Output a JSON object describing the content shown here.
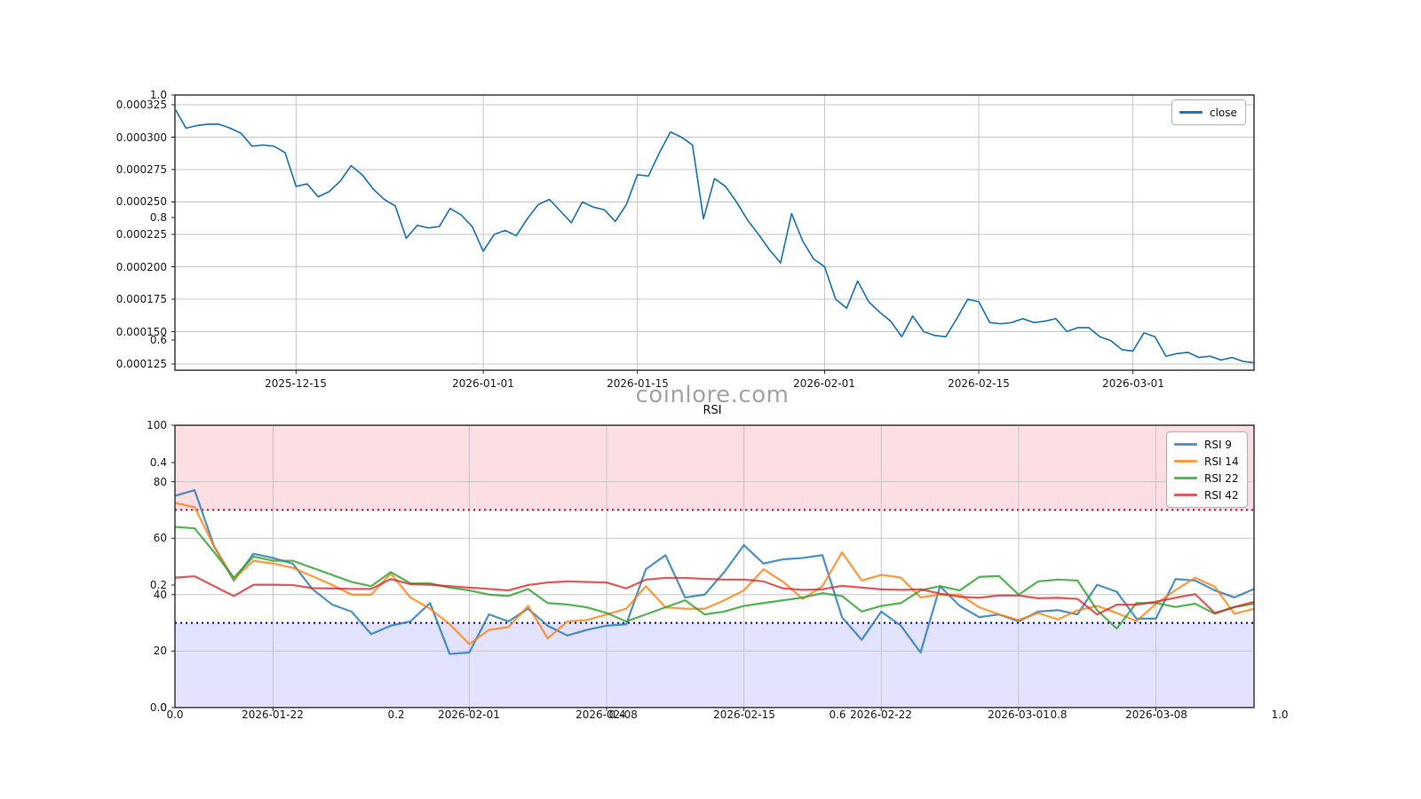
{
  "watermark": "coinlore.com",
  "chart_data": {
    "price": {
      "type": "line",
      "legend_position": "upper right",
      "grid": true,
      "ylim": [
        0.0001212,
        0.0003325
      ],
      "yticks": [
        "0.000325",
        "0.000300",
        "0.000275",
        "0.000250",
        "0.000225",
        "0.000200",
        "0.000175",
        "0.000150",
        "0.000125"
      ],
      "xticks": [
        {
          "label": "2025-12-15",
          "i": 11
        },
        {
          "label": "2026-01-01",
          "i": 28
        },
        {
          "label": "2026-01-15",
          "i": 42
        },
        {
          "label": "2026-02-01",
          "i": 59
        },
        {
          "label": "2026-02-15",
          "i": 73
        },
        {
          "label": "2026-03-01",
          "i": 87
        }
      ],
      "x_range": [
        "2025-12-04",
        "2026-03-12"
      ],
      "series": [
        {
          "name": "close",
          "color": "#1f77b4",
          "values": [
            0.000322,
            0.000307,
            0.000309,
            0.00031,
            0.00031,
            0.000307,
            0.000303,
            0.000293,
            0.000294,
            0.000293,
            0.000288,
            0.000262,
            0.000264,
            0.000254,
            0.000258,
            0.000266,
            0.000278,
            0.000271,
            0.00026,
            0.000252,
            0.000247,
            0.000222,
            0.000232,
            0.00023,
            0.000231,
            0.000245,
            0.00024,
            0.000231,
            0.000212,
            0.000225,
            0.000228,
            0.000224,
            0.000237,
            0.000248,
            0.000252,
            0.000243,
            0.000234,
            0.00025,
            0.000246,
            0.000244,
            0.000235,
            0.000248,
            0.000271,
            0.00027,
            0.000288,
            0.000304,
            0.0003,
            0.000294,
            0.000237,
            0.000268,
            0.000262,
            0.00025,
            0.000236,
            0.000225,
            0.000213,
            0.000203,
            0.000241,
            0.00022,
            0.000206,
            0.0002,
            0.000175,
            0.000168,
            0.000189,
            0.000173,
            0.000165,
            0.000158,
            0.000146,
            0.000162,
            0.00015,
            0.000147,
            0.000146,
            0.00016,
            0.000175,
            0.000173,
            0.000157,
            0.000156,
            0.000157,
            0.00016,
            0.000157,
            0.000158,
            0.00016,
            0.00015,
            0.000153,
            0.000153,
            0.000146,
            0.000143,
            0.000136,
            0.000135,
            0.000149,
            0.000146,
            0.000131,
            0.000133,
            0.000134,
            0.00013,
            0.000131,
            0.000128,
            0.00013,
            0.000127,
            0.000126
          ]
        }
      ]
    },
    "rsi": {
      "type": "line",
      "title": "RSI",
      "grid": true,
      "ylim": [
        0,
        100
      ],
      "overbought_level": 70,
      "oversold_level": 30,
      "overbought_band_color": "rgba(228,0,40,0.13)",
      "oversold_band_color": "rgba(0,0,255,0.11)",
      "overbought_line_color": "#cc0033",
      "oversold_line_color": "#0000bb",
      "yticks": [
        "100",
        "80",
        "60",
        "40",
        "20",
        "0"
      ],
      "xticks": [
        {
          "label": "2026-01-22",
          "i": 5
        },
        {
          "label": "2026-02-01",
          "i": 15
        },
        {
          "label": "2026-02-08",
          "i": 22
        },
        {
          "label": "2026-02-15",
          "i": 29
        },
        {
          "label": "2026-02-22",
          "i": 36
        },
        {
          "label": "2026-03-01",
          "i": 43
        },
        {
          "label": "2026-03-08",
          "i": 50
        }
      ],
      "x_range": [
        "2026-01-17",
        "2026-03-13"
      ],
      "series": [
        {
          "name": "RSI 9",
          "color": "rgba(31,119,180,0.78)",
          "values": [
            75,
            77,
            57,
            45,
            54.5,
            53,
            51,
            42,
            36.5,
            34,
            26,
            29,
            30.5,
            37,
            19,
            19.5,
            33,
            30.5,
            35,
            29,
            25.5,
            27.5,
            29,
            29.5,
            49,
            54,
            39,
            40,
            48,
            57.5,
            51,
            52.5,
            53,
            54,
            32,
            24,
            34,
            29,
            19.5,
            43,
            36,
            32,
            33,
            30.5,
            34,
            34.5,
            33,
            43.5,
            41,
            31.5,
            31.5,
            45.5,
            45,
            41.5,
            39,
            42
          ]
        },
        {
          "name": "RSI 14",
          "color": "rgba(255,127,14,0.78)",
          "values": [
            72.5,
            71,
            57,
            45.5,
            52,
            51,
            49.5,
            46.5,
            43.5,
            40,
            40,
            47.5,
            39,
            35,
            29.5,
            22.5,
            27.5,
            28.5,
            36,
            24.5,
            30.5,
            31,
            33,
            35,
            43,
            35.5,
            35,
            35,
            38,
            41.5,
            49,
            44.5,
            38.5,
            43,
            55,
            45,
            47,
            46,
            39,
            40,
            40,
            35.5,
            33,
            31,
            33.5,
            31.2,
            34.4,
            36,
            33.5,
            30.6,
            36.7,
            41.6,
            46,
            42.8,
            33.2,
            35
          ]
        },
        {
          "name": "RSI 22",
          "color": "rgba(44,160,44,0.78)",
          "values": [
            64,
            63.5,
            55,
            46,
            53.5,
            52,
            52,
            49.5,
            47,
            44.5,
            43,
            48,
            44,
            44,
            42.5,
            41.5,
            40,
            39.5,
            42,
            37,
            36.5,
            35.5,
            33.5,
            30.5,
            33,
            35.5,
            38,
            33,
            34,
            36,
            37,
            38,
            39,
            40.5,
            39.5,
            34,
            36,
            37,
            41.5,
            43,
            41.5,
            46.3,
            46.6,
            40,
            44.7,
            45.3,
            45,
            34.5,
            28,
            37,
            37,
            35.6,
            36.8,
            33.2,
            35.6,
            36.8
          ]
        },
        {
          "name": "RSI 42",
          "color": "rgba(214,39,40,0.75)",
          "values": [
            46,
            46.5,
            43,
            39.5,
            43.5,
            43.5,
            43.4,
            42.3,
            42.2,
            42,
            42,
            45.5,
            43.7,
            43.5,
            43,
            42.5,
            42,
            41.5,
            43.4,
            44.3,
            44.7,
            44.5,
            44.3,
            42.2,
            45.3,
            45.9,
            45.9,
            45.6,
            45.3,
            45.3,
            44.7,
            42.2,
            41.7,
            41.9,
            43.1,
            42.5,
            41.9,
            41.7,
            41.9,
            40.3,
            39.2,
            38.9,
            39.7,
            39.7,
            38.7,
            38.9,
            38.5,
            33,
            36.4,
            36.4,
            37.5,
            38.9,
            40.2,
            33.5,
            35.6,
            37.5
          ]
        }
      ]
    },
    "figure_axis": {
      "yticks": [
        "1.0",
        "0.8",
        "0.6",
        "0.4",
        "0.2",
        "0.0"
      ],
      "xticks": [
        "0.0",
        "0.2",
        "0.4",
        "0.6",
        "0.8",
        "1.0"
      ]
    }
  }
}
